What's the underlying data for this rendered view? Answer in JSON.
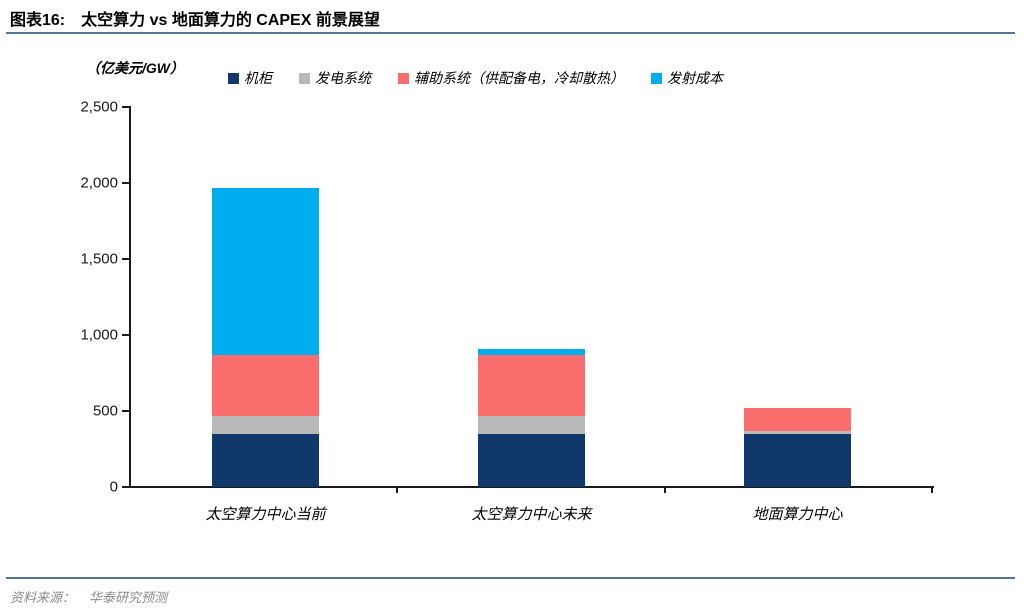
{
  "header": {
    "figure_label": "图表16:",
    "title": "太空算力 vs 地面算力的 CAPEX 前景展望"
  },
  "chart_data": {
    "type": "bar",
    "stacked": true,
    "title": "太空算力 vs 地面算力的 CAPEX 前景展望",
    "unit_label": "（亿美元/GW）",
    "categories": [
      "太空算力中心当前",
      "太空算力中心未来",
      "地面算力中心"
    ],
    "series": [
      {
        "name": "机柜",
        "color": "#11386b",
        "values": [
          350,
          350,
          350
        ]
      },
      {
        "name": "发电系统",
        "color": "#b9b9b9",
        "values": [
          120,
          120,
          20
        ]
      },
      {
        "name": "辅助系统（供配备电，冷却散热）",
        "color": "#f96d6d",
        "values": [
          400,
          400,
          150
        ]
      },
      {
        "name": "发射成本",
        "color": "#00aeef",
        "values": [
          1100,
          40,
          0
        ]
      }
    ],
    "totals": [
      1970,
      910,
      520
    ],
    "ylim": [
      0,
      2500
    ],
    "yticks": [
      0,
      500,
      1000,
      1500,
      2000,
      2500
    ],
    "ytick_labels": [
      "0",
      "500",
      "1,000",
      "1,500",
      "2,000",
      "2,500"
    ],
    "legend_position": "top",
    "grid": false
  },
  "colors": {
    "rule": "#54749c",
    "axis": "#1a1a1a",
    "source_text": "#8a8a8a"
  },
  "footer": {
    "source_label": "资料来源：",
    "source_text": "华泰研究预测"
  }
}
